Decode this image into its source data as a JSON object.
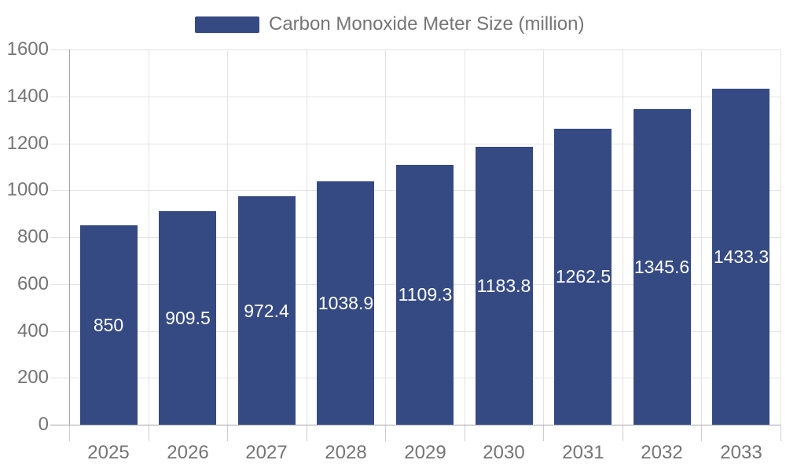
{
  "chart_data": {
    "type": "bar",
    "title": "Carbon Monoxide Meter Size (million)",
    "categories": [
      "2025",
      "2026",
      "2027",
      "2028",
      "2029",
      "2030",
      "2031",
      "2032",
      "2033"
    ],
    "values": [
      850,
      909.5,
      972.4,
      1038.9,
      1109.3,
      1183.8,
      1262.5,
      1345.6,
      1433.3
    ],
    "value_labels": [
      "850",
      "909.5",
      "972.4",
      "1038.9",
      "1109.3",
      "1183.8",
      "1262.5",
      "1345.6",
      "1433.3"
    ],
    "ytick_labels": [
      "0",
      "200",
      "400",
      "600",
      "800",
      "1000",
      "1200",
      "1400",
      "1600"
    ],
    "ylim": [
      0,
      1600
    ],
    "ytick_step": 200,
    "xlabel": "",
    "ylabel": "",
    "grid": true,
    "legend_position": "top-center",
    "colors": {
      "bar": "#354a83",
      "value_label_text": "#ffffff",
      "axis_text": "#757575",
      "legend_text": "#757575",
      "gridline": "#e3e3e3",
      "axis_line": "#a6a6a6",
      "x_tick": "#c9cdd4",
      "background": "#ffffff"
    }
  }
}
